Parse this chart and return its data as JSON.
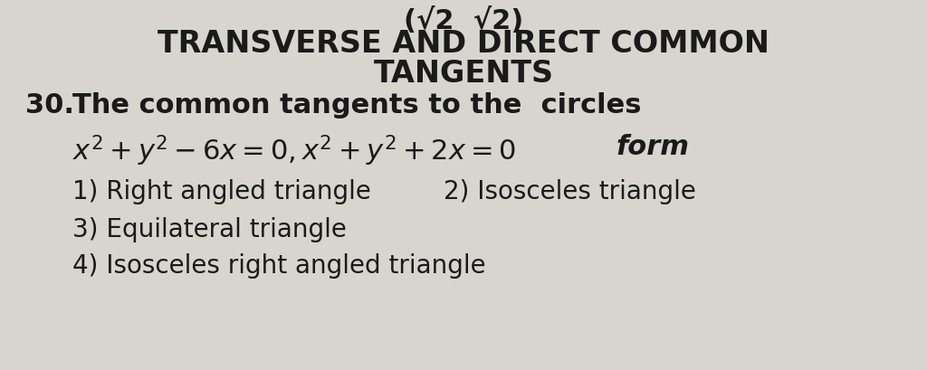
{
  "bg_color": "#d8d5ce",
  "text_color": "#1a1a1a",
  "top_fragment": "(√2  √2)",
  "title_line1": "TRANSVERSE AND DIRECT COMMON",
  "title_line2": "TANGENTS",
  "q_num": "30.",
  "q_text": "The common tangents to the  circles",
  "eq_part1": "$x^2+y^2-6x=0, x^2+y^2+2x=0$",
  "eq_part2": " form",
  "option1": "1) Right angled triangle",
  "option2": "2) Isosceles triangle",
  "option3": "3) Equilateral triangle",
  "option4": "4) Isosceles right angled triangle",
  "title_fs": 24,
  "q_fs": 22,
  "eq_fs": 22,
  "opt_fs": 20
}
